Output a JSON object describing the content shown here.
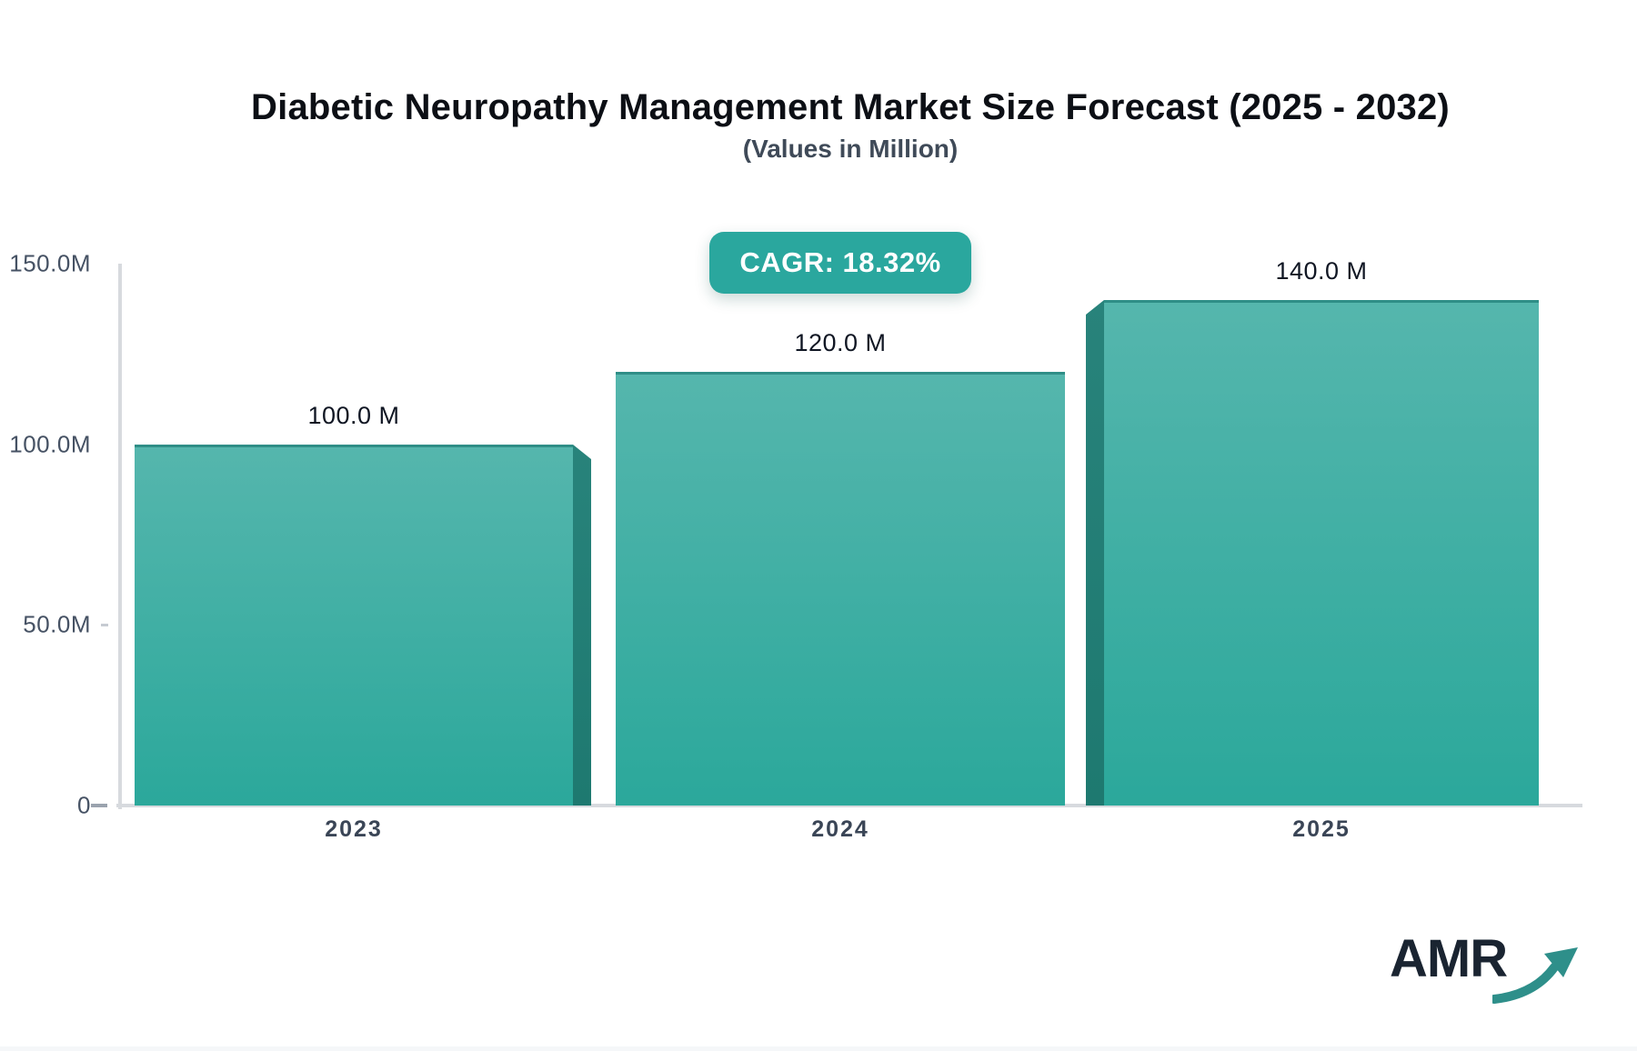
{
  "chart_data": {
    "type": "bar",
    "title": "Diabetic Neuropathy Management Market Size Forecast (2025 - 2032)",
    "subtitle": "(Values in Million)",
    "cagr_label": "CAGR: 18.32%",
    "categories": [
      "2023",
      "2024",
      "2025"
    ],
    "values": [
      100,
      120,
      140
    ],
    "bar_labels": [
      "100.0 M",
      "120.0 M",
      "140.0 M"
    ],
    "unit": "Million",
    "ylim": [
      0,
      150
    ],
    "y_axis": {
      "ticks": [
        {
          "label": "150.0M",
          "value": 150,
          "dash": "none"
        },
        {
          "label": "100.0M",
          "value": 100,
          "dash": "none"
        },
        {
          "label": "50.0M",
          "value": 50,
          "dash": "small"
        },
        {
          "label": "0",
          "value": 0,
          "dash": "long"
        }
      ]
    },
    "legend": "none",
    "grid": "off",
    "bar_style": "3d-bevel",
    "colors": {
      "bar_face_top": "#55b6ad",
      "bar_face_bottom": "#2ba89b",
      "bar_face_border": "#2f8e87",
      "bar_side_top": "#28837b",
      "bar_side_bottom": "#1e7970",
      "badge_bg": "#2aa79e",
      "axis_line": "#d7dade",
      "tick_small": "#c6cbd2",
      "tick_long": "#9aa3ae"
    }
  },
  "logo": {
    "text": "AMR",
    "arrow_icon": "growth-arrow-icon",
    "arrow_color": "#2e8f8a"
  }
}
